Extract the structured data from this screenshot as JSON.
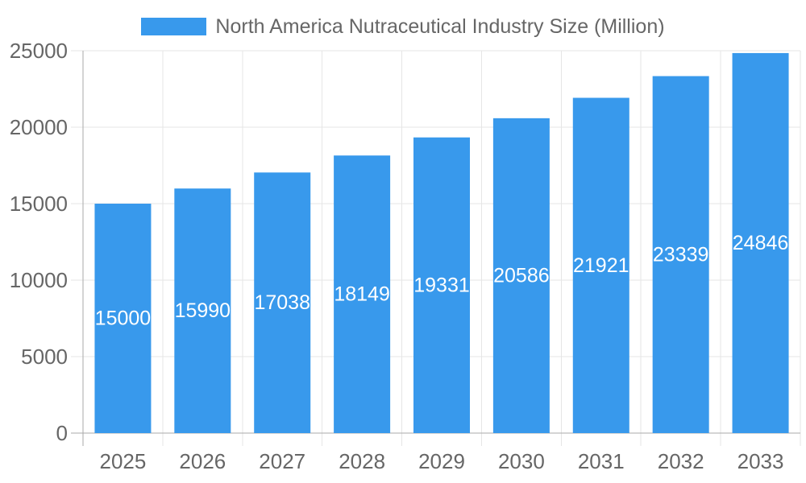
{
  "chart_data": {
    "type": "bar",
    "title": "North America Nutraceutical Industry Size (Million)",
    "legend": {
      "position": "top",
      "label": "North America Nutraceutical Industry Size (Million)"
    },
    "categories": [
      "2025",
      "2026",
      "2027",
      "2028",
      "2029",
      "2030",
      "2031",
      "2032",
      "2033"
    ],
    "series": [
      {
        "name": "North America Nutraceutical Industry Size (Million)",
        "values": [
          15000,
          15990,
          17038,
          18149,
          19331,
          20586,
          21921,
          23339,
          24846
        ]
      }
    ],
    "xlabel": "",
    "ylabel": "",
    "ylim": [
      0,
      25000
    ],
    "yticks": [
      0,
      5000,
      10000,
      15000,
      20000,
      25000
    ],
    "grid": true,
    "data_labels": {
      "position": "inside-center",
      "color": "#ffffff"
    },
    "colors": {
      "bar": "#3899ec",
      "grid": "#e6e6e6",
      "axis": "#aaaaaa",
      "tick_text": "#666666",
      "legend_text": "#666666",
      "data_label_text": "#ffffff",
      "background": "#ffffff"
    }
  }
}
